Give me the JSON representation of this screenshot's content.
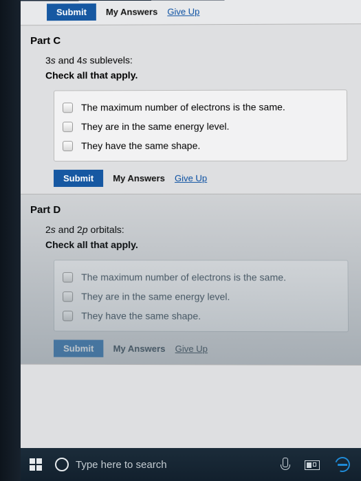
{
  "topbar": {
    "submit": "Submit",
    "my_answers": "My Answers",
    "give_up": "Give Up"
  },
  "partC": {
    "label": "Part C",
    "q_prefix": "3",
    "q_mid": "s",
    "q_and": " and 4",
    "q_mid2": "s",
    "q_suffix": " sublevels:",
    "instruction": "Check all that apply.",
    "options": [
      "The maximum number of electrons is the same.",
      "They are in the same energy level.",
      "They have the same shape."
    ],
    "submit": "Submit",
    "my_answers": "My Answers",
    "give_up": "Give Up"
  },
  "partD": {
    "label": "Part D",
    "q_prefix": "2",
    "q_mid": "s",
    "q_and": " and 2",
    "q_mid2": "p",
    "q_suffix": " orbitals:",
    "instruction": "Check all that apply.",
    "options": [
      "The maximum number of electrons is the same.",
      "They are in the same energy level.",
      "They have the same shape."
    ],
    "submit": "Submit",
    "my_answers": "My Answers",
    "give_up": "Give Up"
  },
  "taskbar": {
    "search_placeholder": "Type here to search"
  },
  "colors": {
    "submit_bg": "#1658a2",
    "link": "#0a4fa1",
    "page_bg": "#dedfe1",
    "taskbar_bg": "#162530",
    "edge": "#1f8ad6"
  }
}
